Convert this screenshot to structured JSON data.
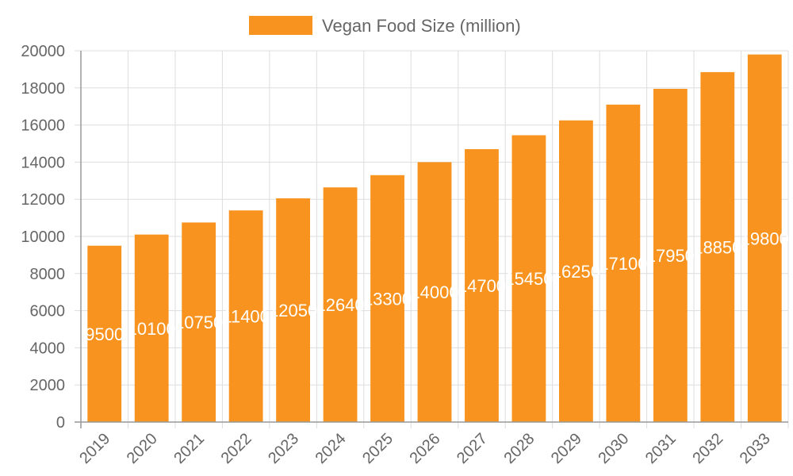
{
  "chart_data": {
    "type": "bar",
    "title": "",
    "xlabel": "",
    "ylabel": "",
    "categories": [
      "2019",
      "2020",
      "2021",
      "2022",
      "2023",
      "2024",
      "2025",
      "2026",
      "2027",
      "2028",
      "2029",
      "2030",
      "2031",
      "2032",
      "2033"
    ],
    "series": [
      {
        "name": "Vegan Food Size (million)",
        "color": "#f7931e",
        "values": [
          9500,
          10100,
          10750,
          11400,
          12050,
          12640,
          13300,
          14000,
          14700,
          15450,
          16250,
          17100,
          17950,
          18850,
          19800
        ]
      }
    ],
    "ylim": [
      0,
      20000
    ],
    "yticks": [
      0,
      2000,
      4000,
      6000,
      8000,
      10000,
      12000,
      14000,
      16000,
      18000,
      20000
    ],
    "grid": true,
    "legend_position": "top-center",
    "data_labels": true
  }
}
